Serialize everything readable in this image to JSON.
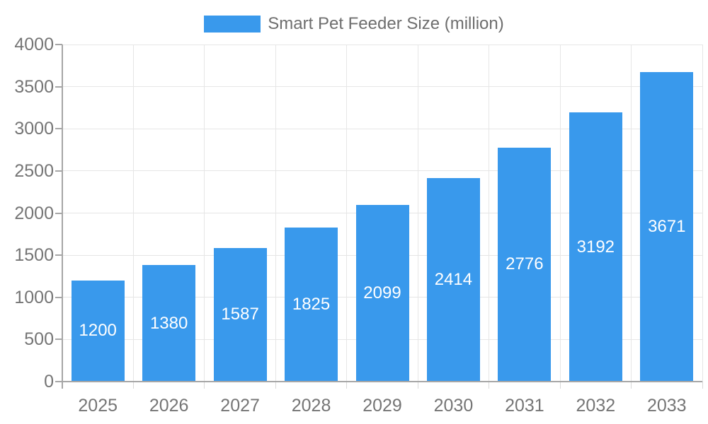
{
  "legend": {
    "label": "Smart Pet Feeder Size (million)"
  },
  "chart_data": {
    "type": "bar",
    "title": "Smart Pet Feeder Size (million)",
    "series_name": "Smart Pet Feeder Size (million)",
    "categories": [
      "2025",
      "2026",
      "2027",
      "2028",
      "2029",
      "2030",
      "2031",
      "2032",
      "2033"
    ],
    "values": [
      1200,
      1380,
      1587,
      1825,
      2099,
      2414,
      2776,
      3192,
      3671
    ],
    "value_labels": [
      "1200",
      "1380",
      "1587",
      "1825",
      "2099",
      "2414",
      "2776",
      "3192",
      "3671"
    ],
    "xlabel": "",
    "ylabel": "",
    "ylim": [
      0,
      4000
    ],
    "ytick_step": 500,
    "yticks": [
      0,
      500,
      1000,
      1500,
      2000,
      2500,
      3000,
      3500,
      4000
    ],
    "ytick_labels": [
      "0",
      "500",
      "1000",
      "1500",
      "2000",
      "2500",
      "3000",
      "3500",
      "4000"
    ],
    "grid": true,
    "legend_position": "top-center",
    "value_label_position": "inside-center",
    "colors": {
      "bar": "#3999EC",
      "value_label": "#FFFFFF",
      "tick_label": "#757575",
      "legend_text": "#6E6E6E",
      "axis_line": "#A6A6A6",
      "grid_line": "#E6E6E6",
      "x_tick_line": "#D9D9D9",
      "background": "#FFFFFF"
    }
  }
}
